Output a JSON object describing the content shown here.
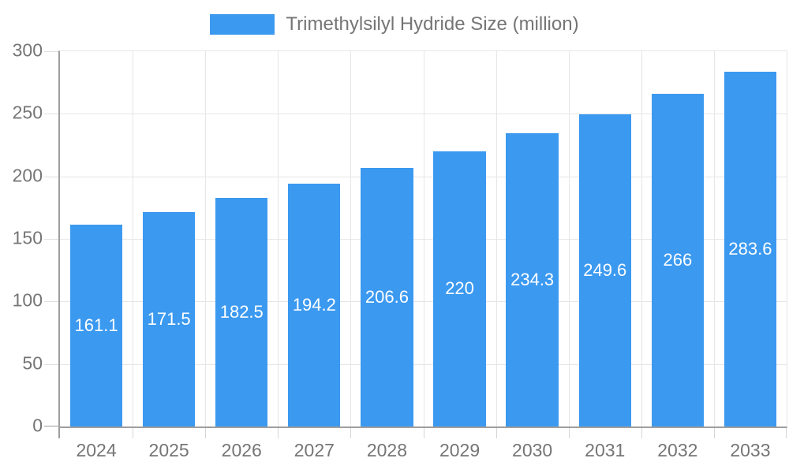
{
  "chart_data": {
    "type": "bar",
    "title": "Trimethylsilyl Hydride Size (million)",
    "legend": [
      "Trimethylsilyl Hydride Size (million)"
    ],
    "legend_position": "top",
    "categories": [
      "2024",
      "2025",
      "2026",
      "2027",
      "2028",
      "2029",
      "2030",
      "2031",
      "2032",
      "2033"
    ],
    "values": [
      161.1,
      171.5,
      182.5,
      194.2,
      206.6,
      220,
      234.3,
      249.6,
      266,
      283.6
    ],
    "value_labels": [
      "161.1",
      "171.5",
      "182.5",
      "194.2",
      "206.6",
      "220",
      "234.3",
      "249.6",
      "266",
      "283.6"
    ],
    "xlabel": "",
    "ylabel": "",
    "ylim": [
      0,
      300
    ],
    "yticks": [
      0,
      50,
      100,
      150,
      200,
      250,
      300
    ],
    "grid": true,
    "colors": {
      "bar": "#3b99f0",
      "grid": "#e6e6e6",
      "axis": "#9e9e9e",
      "tick_text": "#757575",
      "value_label": "#ffffff"
    }
  }
}
